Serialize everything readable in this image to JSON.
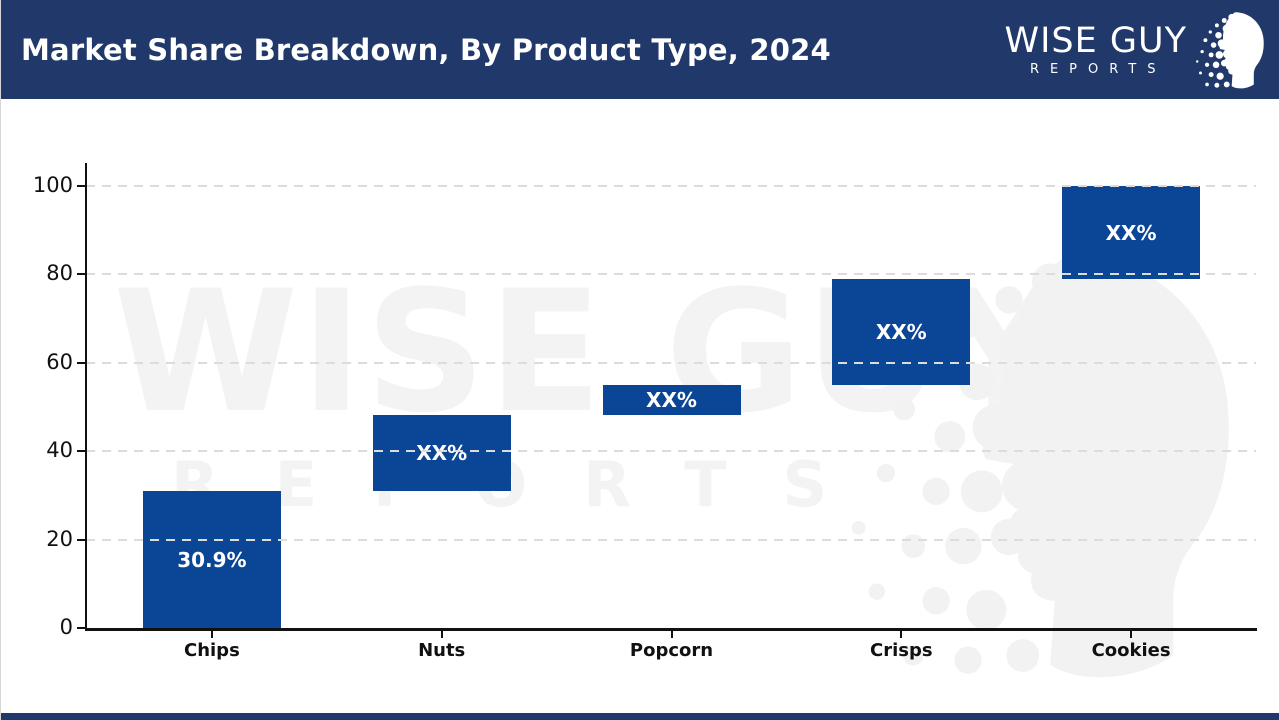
{
  "header": {
    "title": "Market Share Breakdown, By Product Type, 2024",
    "logo": {
      "line1": "WISE GUY",
      "line2": "REPORTS"
    }
  },
  "watermark": {
    "line1": "WISE GUY",
    "line2": "REPORTS"
  },
  "colors": {
    "header_bg": "#20386a",
    "bar": "#0a4596",
    "bar_label": "#ffffff",
    "grid": "#dcdcdc",
    "axis": "#111111",
    "watermark": "#f2f2f2"
  },
  "chart_data": {
    "type": "bar",
    "subtype": "waterfall",
    "title": "Market Share Breakdown, By Product Type, 2024",
    "categories": [
      "Chips",
      "Nuts",
      "Popcorn",
      "Crisps",
      "Cookies"
    ],
    "segments": [
      {
        "category": "Chips",
        "start": 0,
        "end": 30.9,
        "label": "30.9%"
      },
      {
        "category": "Nuts",
        "start": 30.9,
        "end": 48.1,
        "label": "XX%"
      },
      {
        "category": "Popcorn",
        "start": 48.1,
        "end": 55.0,
        "label": "XX%"
      },
      {
        "category": "Crisps",
        "start": 55.0,
        "end": 78.9,
        "label": "XX%"
      },
      {
        "category": "Cookies",
        "start": 78.9,
        "end": 100.0,
        "label": "XX%"
      }
    ],
    "yticks": [
      0,
      20,
      40,
      60,
      80,
      100
    ],
    "ylim": [
      0,
      105
    ],
    "xlabel": "",
    "ylabel": "",
    "grid": "horizontal-dashed",
    "legend": "none"
  }
}
